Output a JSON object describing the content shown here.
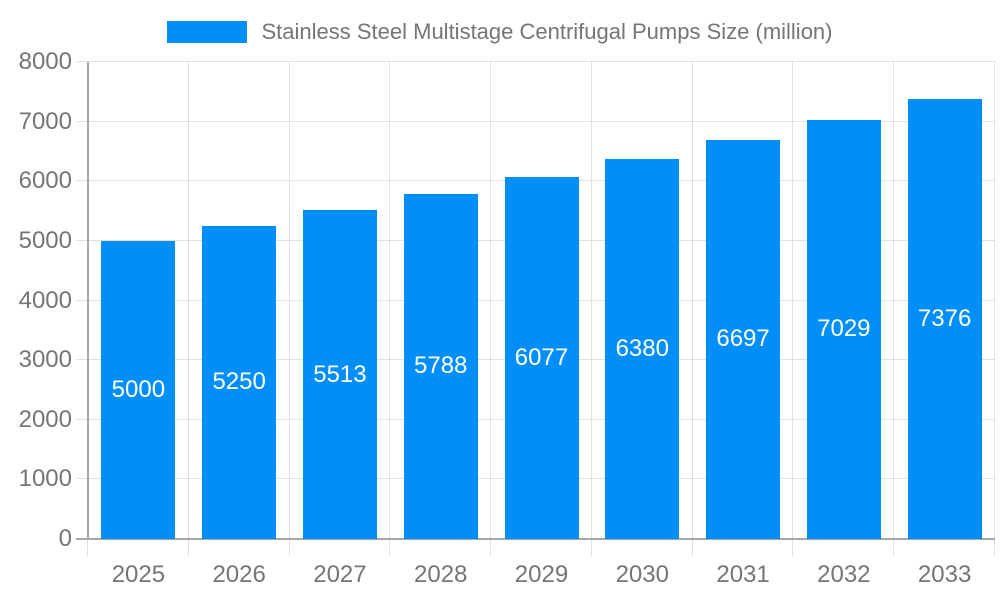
{
  "legend": {
    "label": "Stainless Steel Multistage Centrifugal Pumps Size (million)"
  },
  "chart_data": {
    "type": "bar",
    "title": "Stainless Steel Multistage Centrifugal Pumps Size (million)",
    "categories": [
      "2025",
      "2026",
      "2027",
      "2028",
      "2029",
      "2030",
      "2031",
      "2032",
      "2033"
    ],
    "values": [
      5000,
      5250,
      5513,
      5788,
      6077,
      6380,
      6697,
      7029,
      7376
    ],
    "value_labels": [
      "5000",
      "5250",
      "5513",
      "5788",
      "6077",
      "6380",
      "6697",
      "7029",
      "7376"
    ],
    "xlabel": "",
    "ylabel": "",
    "ylim": [
      0,
      8000
    ],
    "ytick_interval": 1000,
    "ytick_labels": [
      "0",
      "1000",
      "2000",
      "3000",
      "4000",
      "5000",
      "6000",
      "7000",
      "8000"
    ],
    "grid": true,
    "legend_position": "top-center",
    "colors": {
      "bar": "#008FF8",
      "value_label": "#ffffff",
      "axis_text": "#757575",
      "gridline": "#e0e0e0",
      "axis_line": "#a6a6a6",
      "background": "#ffffff"
    }
  }
}
